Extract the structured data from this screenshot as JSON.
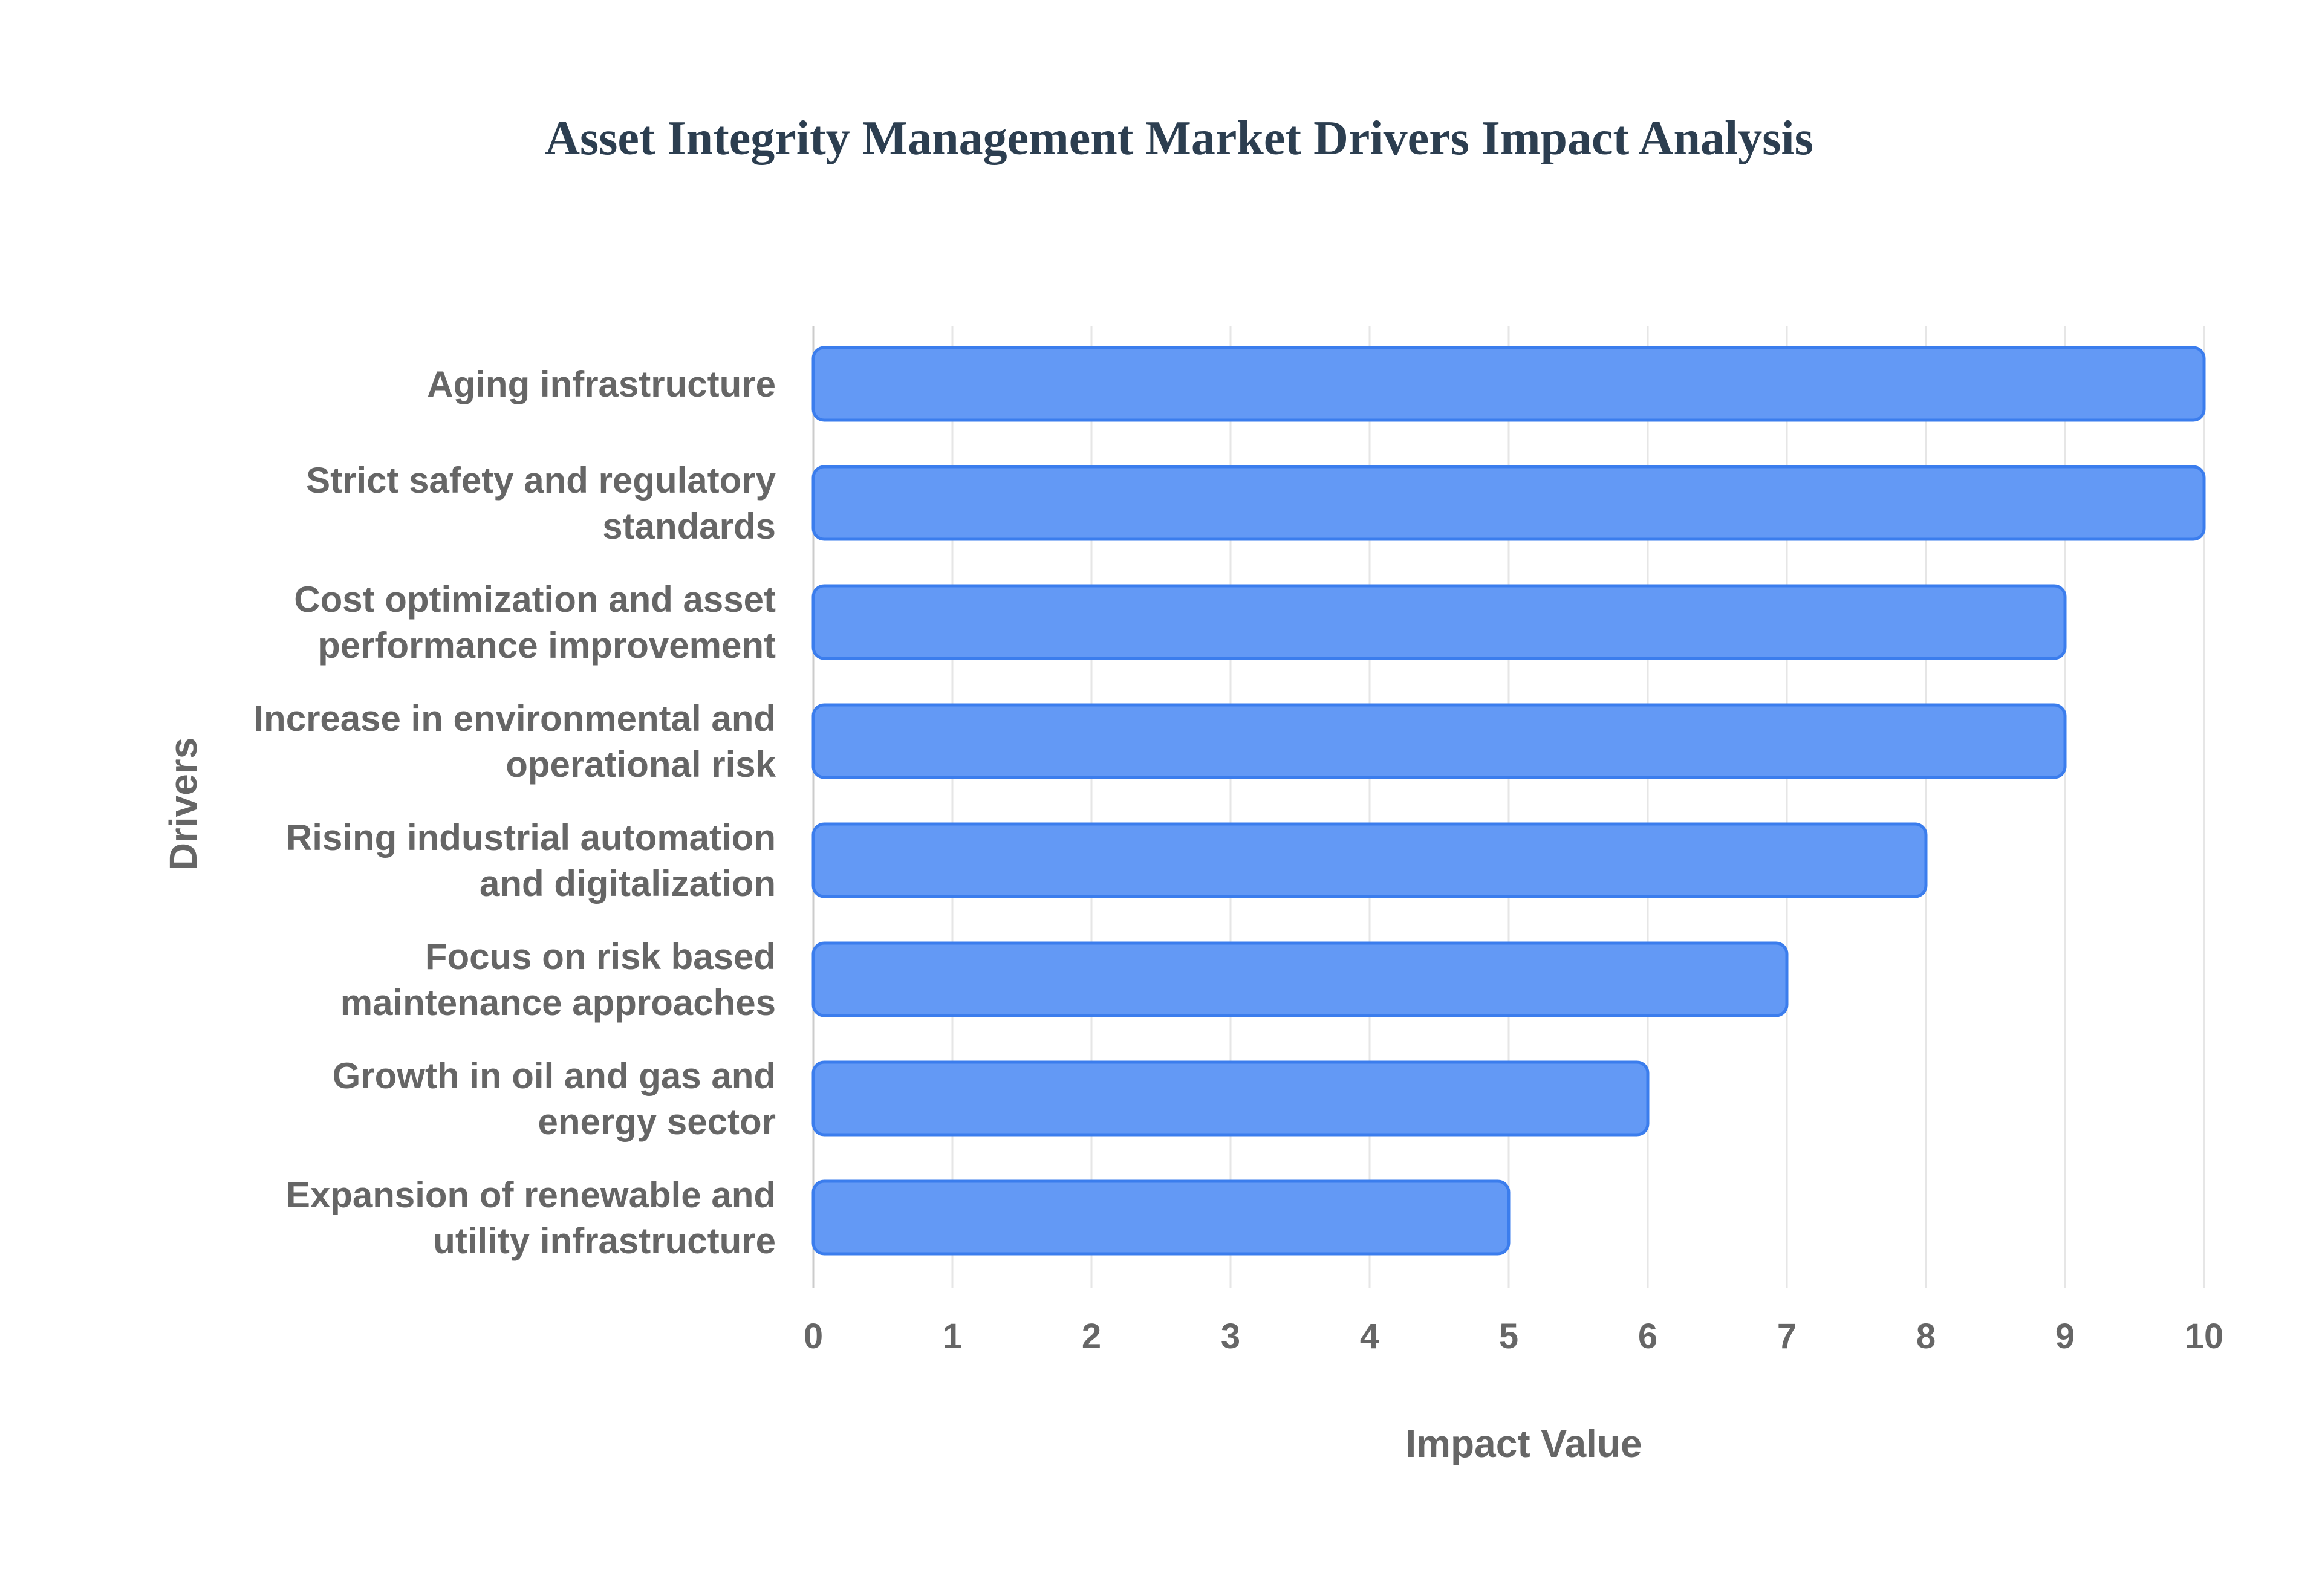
{
  "chart_data": {
    "type": "bar",
    "orientation": "horizontal",
    "title": "Asset Integrity Management Market Drivers Impact Analysis",
    "xlabel": "Impact Value",
    "ylabel": "Drivers",
    "categories": [
      [
        "Aging infrastructure"
      ],
      [
        "Strict safety and regulatory",
        "standards"
      ],
      [
        "Cost optimization and asset",
        "performance improvement"
      ],
      [
        "Increase in environmental and",
        "operational risk"
      ],
      [
        "Rising industrial automation",
        "and digitalization"
      ],
      [
        "Focus on risk based",
        "maintenance approaches"
      ],
      [
        "Growth in oil and gas and",
        "energy sector"
      ],
      [
        "Expansion of renewable and",
        "utility infrastructure"
      ]
    ],
    "values": [
      10,
      10,
      9,
      9,
      8,
      7,
      6,
      5
    ],
    "xlim": [
      0,
      10
    ],
    "xticks": [
      "0",
      "1",
      "2",
      "3",
      "4",
      "5",
      "6",
      "7",
      "8",
      "9",
      "10"
    ],
    "grid": true,
    "legend": "none",
    "colors": {
      "bar_fill": "#6399f5",
      "bar_stroke": "#3b7ded",
      "title": "#2c3e50",
      "text": "#666666",
      "grid": "#e6e6e6"
    }
  }
}
